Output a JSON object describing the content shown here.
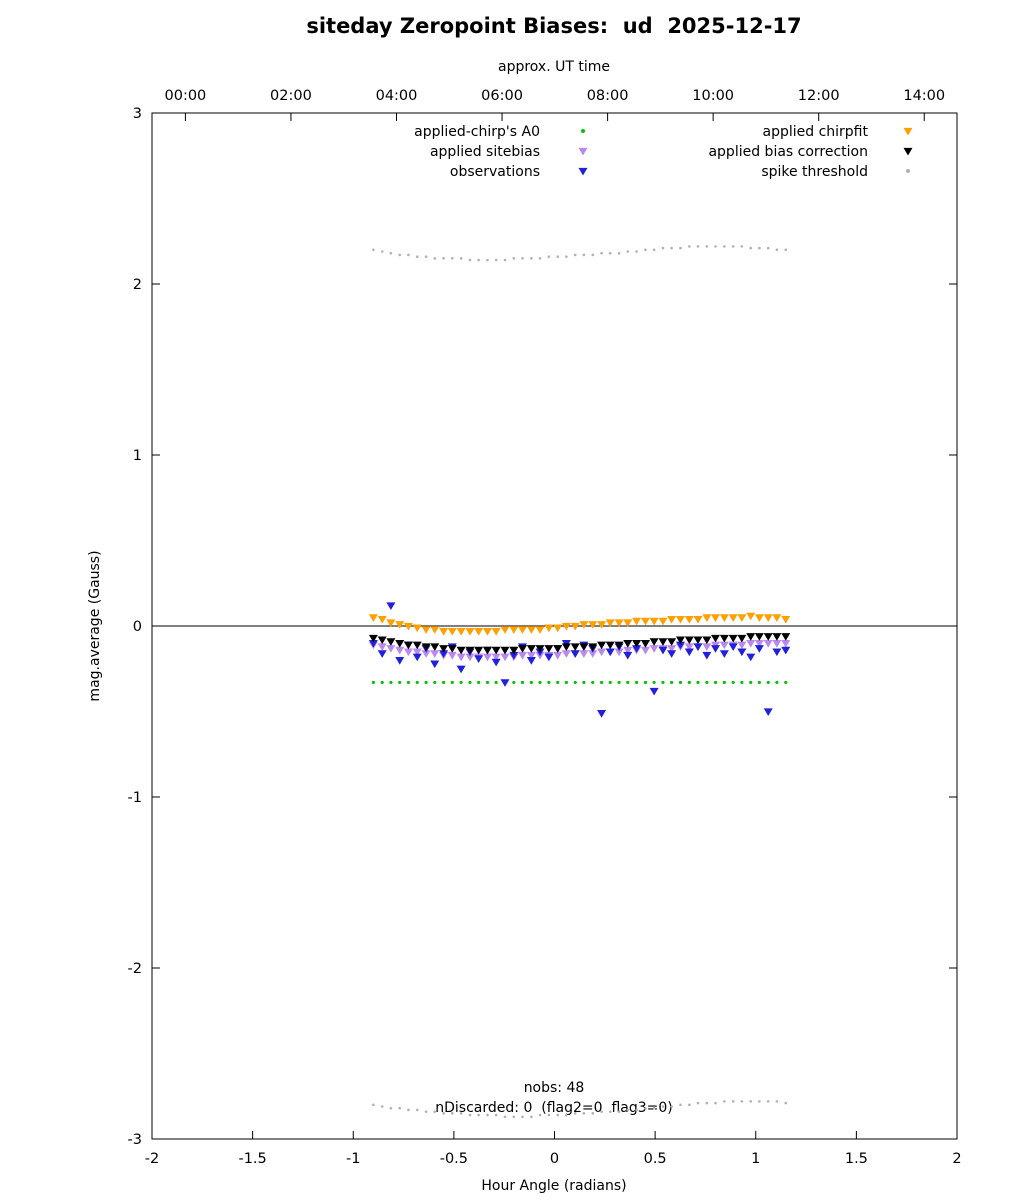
{
  "title": "siteday Zeropoint Biases:  ud  2025-12-17",
  "top_axis": {
    "label": "approx. UT time",
    "tick_labels": [
      "00:00",
      "02:00",
      "04:00",
      "06:00",
      "08:00",
      "10:00",
      "12:00",
      "14:00"
    ]
  },
  "x_axis": {
    "label": "Hour Angle (radians)",
    "tick_values": [
      -2,
      -1.5,
      -1,
      -0.5,
      0,
      0.5,
      1,
      1.5,
      2
    ],
    "tick_labels": [
      "-2",
      "-1.5",
      "-1",
      "-0.5",
      "0",
      "0.5",
      "1",
      "1.5",
      "2"
    ],
    "range": [
      -2,
      2
    ]
  },
  "y_axis": {
    "label": "mag.average (Gauss)",
    "tick_values": [
      -3,
      -2,
      -1,
      0,
      1,
      2,
      3
    ],
    "tick_labels": [
      "-3",
      "-2",
      "-1",
      "0",
      "1",
      "2",
      "3"
    ],
    "range": [
      -3,
      3
    ]
  },
  "legend": {
    "columns": [
      {
        "items": [
          {
            "label": "applied-chirp's A0",
            "marker": "dot",
            "color": "#00c400"
          },
          {
            "label": "applied sitebias",
            "marker": "triangle-down",
            "color": "#bb88ee"
          },
          {
            "label": "observations",
            "marker": "triangle-down",
            "color": "#2020dd"
          }
        ]
      },
      {
        "items": [
          {
            "label": "applied chirpfit",
            "marker": "triangle-down",
            "color": "#ffa000"
          },
          {
            "label": "applied bias correction",
            "marker": "triangle-down",
            "color": "#000000"
          },
          {
            "label": "spike threshold",
            "marker": "dot",
            "color": "#b0b0b0"
          }
        ]
      }
    ]
  },
  "annotations": {
    "nobs": "nobs: 48",
    "ndiscarded": "nDiscarded: 0  (flag2=0  flag3=0)"
  },
  "chart_data": {
    "type": "scatter",
    "title": "siteday Zeropoint Biases: ud 2025-12-17",
    "xlabel": "Hour Angle (radians)",
    "ylabel": "mag.average (Gauss)",
    "x2label": "approx. UT time",
    "xlim": [
      -2,
      2
    ],
    "ylim": [
      -3,
      3
    ],
    "grid": false,
    "legend_position": "top-inside",
    "nobs": 48,
    "x": [
      -0.9,
      -0.856,
      -0.813,
      -0.769,
      -0.726,
      -0.682,
      -0.638,
      -0.595,
      -0.551,
      -0.508,
      -0.464,
      -0.42,
      -0.377,
      -0.333,
      -0.29,
      -0.246,
      -0.202,
      -0.159,
      -0.115,
      -0.072,
      -0.028,
      0.016,
      0.059,
      0.103,
      0.146,
      0.19,
      0.234,
      0.277,
      0.321,
      0.364,
      0.408,
      0.452,
      0.495,
      0.539,
      0.582,
      0.626,
      0.67,
      0.713,
      0.757,
      0.8,
      0.844,
      0.888,
      0.931,
      0.975,
      1.018,
      1.062,
      1.105,
      1.149
    ],
    "series": [
      {
        "name": "applied-chirp's A0",
        "marker": "dot",
        "size": 1.6,
        "color": "#00c400",
        "values": [
          -0.33,
          -0.33,
          -0.33,
          -0.33,
          -0.33,
          -0.33,
          -0.33,
          -0.33,
          -0.33,
          -0.33,
          -0.33,
          -0.33,
          -0.33,
          -0.33,
          -0.33,
          -0.33,
          -0.33,
          -0.33,
          -0.33,
          -0.33,
          -0.33,
          -0.33,
          -0.33,
          -0.33,
          -0.33,
          -0.33,
          -0.33,
          -0.33,
          -0.33,
          -0.33,
          -0.33,
          -0.33,
          -0.33,
          -0.33,
          -0.33,
          -0.33,
          -0.33,
          -0.33,
          -0.33,
          -0.33,
          -0.33,
          -0.33,
          -0.33,
          -0.33,
          -0.33,
          -0.33,
          -0.33,
          -0.33
        ]
      },
      {
        "name": "applied sitebias",
        "marker": "triangle-down",
        "size": 4.5,
        "color": "#bb88ee",
        "values": [
          -0.11,
          -0.12,
          -0.13,
          -0.14,
          -0.15,
          -0.15,
          -0.16,
          -0.16,
          -0.17,
          -0.17,
          -0.18,
          -0.18,
          -0.18,
          -0.18,
          -0.18,
          -0.18,
          -0.18,
          -0.17,
          -0.17,
          -0.17,
          -0.17,
          -0.17,
          -0.16,
          -0.16,
          -0.16,
          -0.16,
          -0.15,
          -0.15,
          -0.15,
          -0.14,
          -0.14,
          -0.14,
          -0.13,
          -0.13,
          -0.13,
          -0.12,
          -0.12,
          -0.12,
          -0.12,
          -0.11,
          -0.11,
          -0.11,
          -0.11,
          -0.1,
          -0.1,
          -0.1,
          -0.1,
          -0.1
        ]
      },
      {
        "name": "observations",
        "marker": "triangle-down",
        "size": 4.5,
        "color": "#2020dd",
        "values": [
          -0.1,
          -0.16,
          0.12,
          -0.2,
          -0.11,
          -0.18,
          -0.13,
          -0.22,
          -0.16,
          -0.12,
          -0.25,
          -0.15,
          -0.19,
          -0.14,
          -0.21,
          -0.33,
          -0.17,
          -0.12,
          -0.2,
          -0.15,
          -0.18,
          -0.13,
          -0.1,
          -0.16,
          -0.11,
          -0.13,
          -0.51,
          -0.15,
          -0.12,
          -0.17,
          -0.13,
          -0.1,
          -0.38,
          -0.14,
          -0.16,
          -0.11,
          -0.15,
          -0.12,
          -0.17,
          -0.13,
          -0.16,
          -0.12,
          -0.15,
          -0.18,
          -0.13,
          -0.5,
          -0.15,
          -0.14
        ]
      },
      {
        "name": "applied chirpfit",
        "marker": "triangle-down",
        "size": 4.5,
        "color": "#ffa000",
        "values": [
          0.05,
          0.04,
          0.02,
          0.01,
          0.0,
          -0.01,
          -0.02,
          -0.02,
          -0.03,
          -0.03,
          -0.03,
          -0.03,
          -0.03,
          -0.03,
          -0.03,
          -0.02,
          -0.02,
          -0.02,
          -0.02,
          -0.02,
          -0.01,
          -0.01,
          0.0,
          0.0,
          0.01,
          0.01,
          0.01,
          0.02,
          0.02,
          0.02,
          0.03,
          0.03,
          0.03,
          0.03,
          0.04,
          0.04,
          0.04,
          0.04,
          0.05,
          0.05,
          0.05,
          0.05,
          0.05,
          0.06,
          0.05,
          0.05,
          0.05,
          0.04
        ]
      },
      {
        "name": "applied bias correction",
        "marker": "triangle-down",
        "size": 4.5,
        "color": "#000000",
        "values": [
          -0.07,
          -0.08,
          -0.09,
          -0.1,
          -0.11,
          -0.11,
          -0.12,
          -0.12,
          -0.13,
          -0.13,
          -0.14,
          -0.14,
          -0.14,
          -0.14,
          -0.14,
          -0.14,
          -0.14,
          -0.13,
          -0.13,
          -0.13,
          -0.13,
          -0.13,
          -0.12,
          -0.12,
          -0.12,
          -0.12,
          -0.11,
          -0.11,
          -0.11,
          -0.1,
          -0.1,
          -0.1,
          -0.09,
          -0.09,
          -0.09,
          -0.08,
          -0.08,
          -0.08,
          -0.08,
          -0.07,
          -0.07,
          -0.07,
          -0.07,
          -0.06,
          -0.06,
          -0.06,
          -0.06,
          -0.06
        ]
      },
      {
        "name": "spike threshold upper",
        "marker": "dot",
        "size": 1.3,
        "color": "#b0b0b0",
        "values": [
          2.2,
          2.19,
          2.18,
          2.17,
          2.17,
          2.16,
          2.16,
          2.15,
          2.15,
          2.15,
          2.15,
          2.14,
          2.14,
          2.14,
          2.14,
          2.14,
          2.15,
          2.15,
          2.15,
          2.15,
          2.16,
          2.16,
          2.16,
          2.17,
          2.17,
          2.17,
          2.18,
          2.18,
          2.18,
          2.19,
          2.19,
          2.2,
          2.2,
          2.21,
          2.21,
          2.21,
          2.22,
          2.22,
          2.22,
          2.22,
          2.22,
          2.22,
          2.22,
          2.21,
          2.21,
          2.21,
          2.2,
          2.2
        ]
      },
      {
        "name": "spike threshold lower",
        "marker": "dot",
        "size": 1.3,
        "color": "#b0b0b0",
        "values": [
          -2.8,
          -2.81,
          -2.82,
          -2.82,
          -2.83,
          -2.83,
          -2.84,
          -2.84,
          -2.85,
          -2.85,
          -2.85,
          -2.86,
          -2.86,
          -2.86,
          -2.86,
          -2.87,
          -2.87,
          -2.87,
          -2.87,
          -2.86,
          -2.86,
          -2.86,
          -2.86,
          -2.85,
          -2.85,
          -2.85,
          -2.84,
          -2.84,
          -2.84,
          -2.83,
          -2.83,
          -2.82,
          -2.82,
          -2.81,
          -2.81,
          -2.8,
          -2.8,
          -2.79,
          -2.79,
          -2.79,
          -2.78,
          -2.78,
          -2.78,
          -2.78,
          -2.78,
          -2.78,
          -2.78,
          -2.79
        ]
      }
    ]
  }
}
